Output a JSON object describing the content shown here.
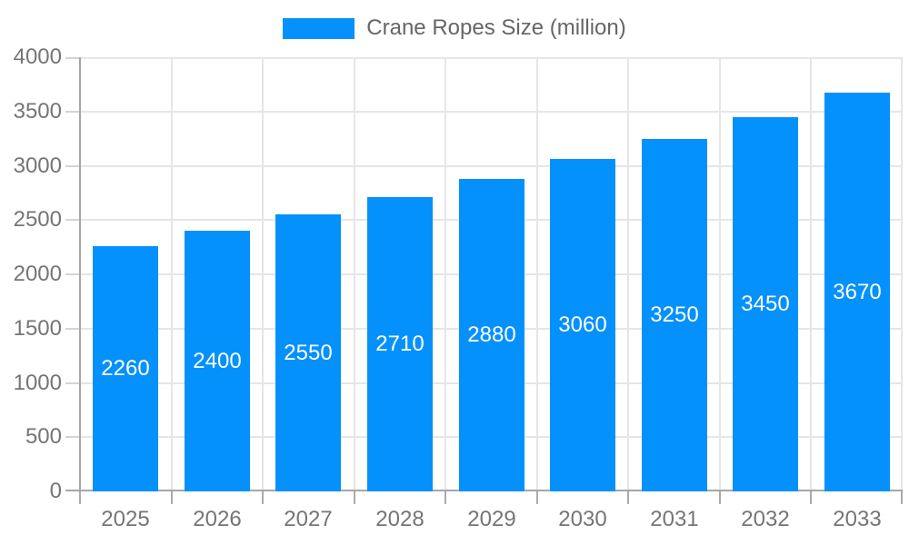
{
  "chart_data": {
    "type": "bar",
    "title": "Crane Ropes Size (million)",
    "series_name": "Crane Ropes Size (million)",
    "categories": [
      "2025",
      "2026",
      "2027",
      "2028",
      "2029",
      "2030",
      "2031",
      "2032",
      "2033"
    ],
    "values": [
      2260,
      2400,
      2550,
      2710,
      2880,
      3060,
      3250,
      3450,
      3670
    ],
    "xlabel": "",
    "ylabel": "",
    "ylim": [
      0,
      4000
    ],
    "ytick_step": 500,
    "grid": true,
    "legend_position": "top",
    "colors": {
      "bar": "#0591fb",
      "value_label": "#ffffff",
      "grid": "#e6e6e6",
      "axis": "#a6a6a6",
      "ytick": "#d4d4d4",
      "xtick": "#ababab",
      "tick_label": "#757575",
      "legend_text": "#666666"
    }
  }
}
